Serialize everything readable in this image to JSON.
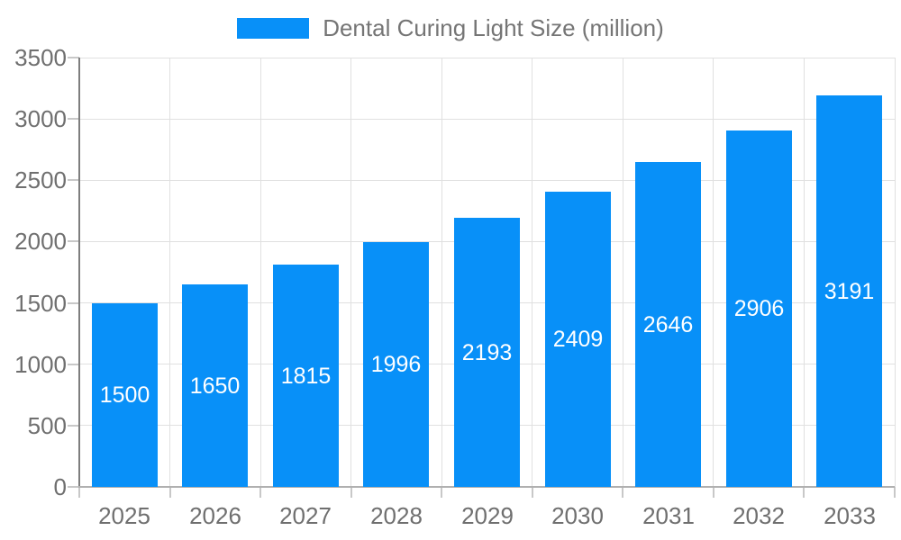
{
  "chart_data": {
    "type": "bar",
    "title": "Dental Curing Light Size (million)",
    "categories": [
      "2025",
      "2026",
      "2027",
      "2028",
      "2029",
      "2030",
      "2031",
      "2032",
      "2033"
    ],
    "values": [
      1500,
      1650,
      1815,
      1996,
      2193,
      2409,
      2646,
      2906,
      3191
    ],
    "series": [
      {
        "name": "Dental Curing Light Size (million)",
        "values": [
          1500,
          1650,
          1815,
          1996,
          2193,
          2409,
          2646,
          2906,
          3191
        ]
      }
    ],
    "xlabel": "",
    "ylabel": "",
    "ylim": [
      0,
      3500
    ],
    "yticks": [
      0,
      500,
      1000,
      1500,
      2000,
      2500,
      3000,
      3500
    ],
    "grid": true,
    "legend_position": "top-center",
    "bar_value_labels": "centered-inside-white"
  },
  "colors": {
    "bar": "#0890f8",
    "bar_label": "#ffffff",
    "axis_text": "#6f6f6f",
    "legend_text": "#757575",
    "grid_line": "#e0e0e0",
    "x_axis_line": "#b0b0b0",
    "y_axis_line": "#7e7e7e",
    "tick": "#c8c8c8",
    "background": "#ffffff"
  }
}
